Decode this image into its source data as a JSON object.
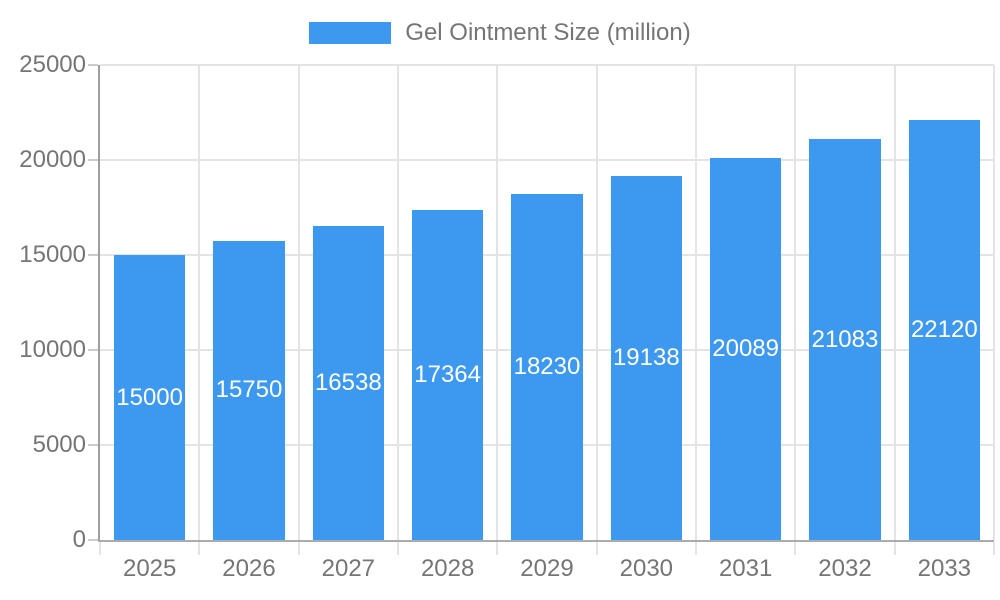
{
  "legend": {
    "label": "Gel Ointment Size (million)"
  },
  "chart_data": {
    "type": "bar",
    "title": "Gel Ointment Size (million)",
    "legend_position": "top",
    "categories": [
      "2025",
      "2026",
      "2027",
      "2028",
      "2029",
      "2030",
      "2031",
      "2032",
      "2033"
    ],
    "values": [
      15000,
      15750,
      16538,
      17364,
      18230,
      19138,
      20089,
      21083,
      22120
    ],
    "xlabel": "",
    "ylabel": "",
    "ylim": [
      0,
      25000
    ],
    "yticks": [
      0,
      5000,
      10000,
      15000,
      20000,
      25000
    ],
    "grid": true,
    "bar_color": "#3d99f0",
    "bar_label_color": "#ffffff",
    "axis_text_color": "#757575",
    "axis_line_y_color": "#9e9e9e",
    "axis_line_x_color": "#ababab",
    "grid_color": "#e4e4e4",
    "ytick_color": "#cccccc",
    "background": "#ffffff"
  }
}
